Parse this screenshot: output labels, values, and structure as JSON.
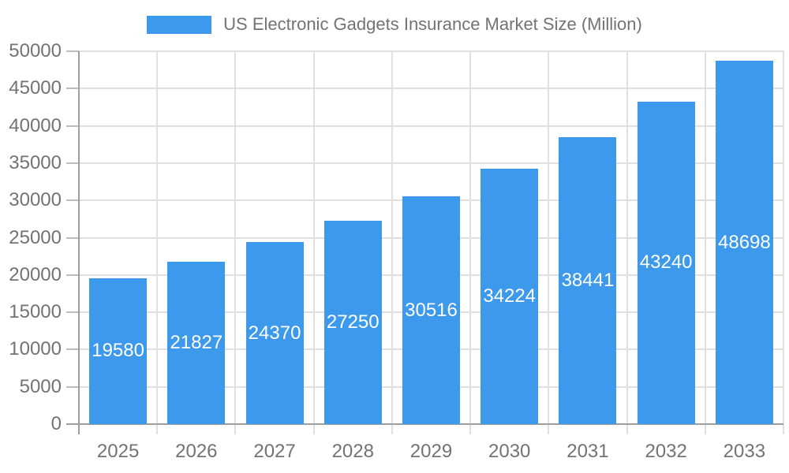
{
  "chart_data": {
    "type": "bar",
    "title": "US Electronic Gadgets Insurance Market Size (Million)",
    "legend": {
      "position": "top",
      "entries": [
        "US Electronic Gadgets Insurance Market Size (Million)"
      ]
    },
    "categories": [
      "2025",
      "2026",
      "2027",
      "2028",
      "2029",
      "2030",
      "2031",
      "2032",
      "2033"
    ],
    "series": [
      {
        "name": "US Electronic Gadgets Insurance Market Size (Million)",
        "color": "#3C99EC",
        "values": [
          19580,
          21827,
          24370,
          27250,
          30516,
          34224,
          38441,
          43240,
          48698
        ]
      }
    ],
    "value_labels": {
      "visible": true,
      "color": "#ffffff",
      "position": "center-of-bar"
    },
    "xlabel": "",
    "ylabel": "",
    "ylim": [
      0,
      50000
    ],
    "ytick_step": 5000,
    "yticks": [
      0,
      5000,
      10000,
      15000,
      20000,
      25000,
      30000,
      35000,
      40000,
      45000,
      50000
    ],
    "grid": {
      "horizontal": true,
      "vertical": true,
      "color": "#e0e0e0"
    },
    "axis_color": "#9e9e9e",
    "tick_color": "#bdbdbd",
    "text_color": "#737373",
    "background": "#ffffff"
  }
}
